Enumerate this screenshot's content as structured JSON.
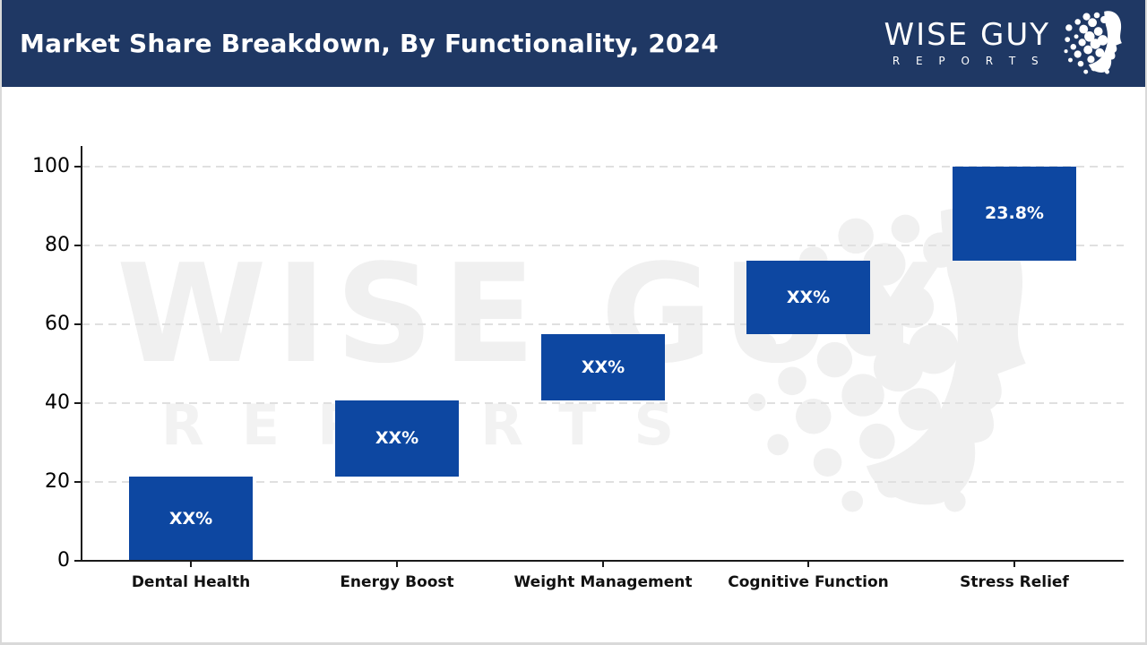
{
  "header": {
    "title": "Market Share Breakdown, By Functionality, 2024",
    "bg_color": "#1f3864",
    "logo": {
      "name": "WISE GUY",
      "sub": "R E P O R T S"
    }
  },
  "watermark": {
    "line1": "WISE GUY",
    "line2": "REPORTS"
  },
  "chart_data": {
    "type": "bar",
    "subtype": "waterfall",
    "title": "Market Share Breakdown, By Functionality, 2024",
    "categories": [
      "Dental Health",
      "Energy Boost",
      "Weight Management",
      "Cognitive Function",
      "Stress Relief"
    ],
    "bars": [
      {
        "category": "Dental Health",
        "start": 0,
        "end": 21.4,
        "label": "XX%"
      },
      {
        "category": "Energy Boost",
        "start": 21.4,
        "end": 40.7,
        "label": "XX%"
      },
      {
        "category": "Weight Management",
        "start": 40.7,
        "end": 57.5,
        "label": "XX%"
      },
      {
        "category": "Cognitive Function",
        "start": 57.5,
        "end": 76.2,
        "label": "XX%"
      },
      {
        "category": "Stress Relief",
        "start": 76.2,
        "end": 100,
        "label": "23.8%"
      }
    ],
    "xlabel": "",
    "ylabel": "",
    "yticks": [
      0,
      20,
      40,
      60,
      80,
      100
    ],
    "ylim": [
      0,
      105
    ],
    "grid": "horizontal-dashed",
    "legend": "none",
    "bar_color": "#0d47a1",
    "bar_label_color": "#ffffff",
    "axis_color": "#1a1a1a",
    "gridline_color": "#e0e0e0"
  }
}
